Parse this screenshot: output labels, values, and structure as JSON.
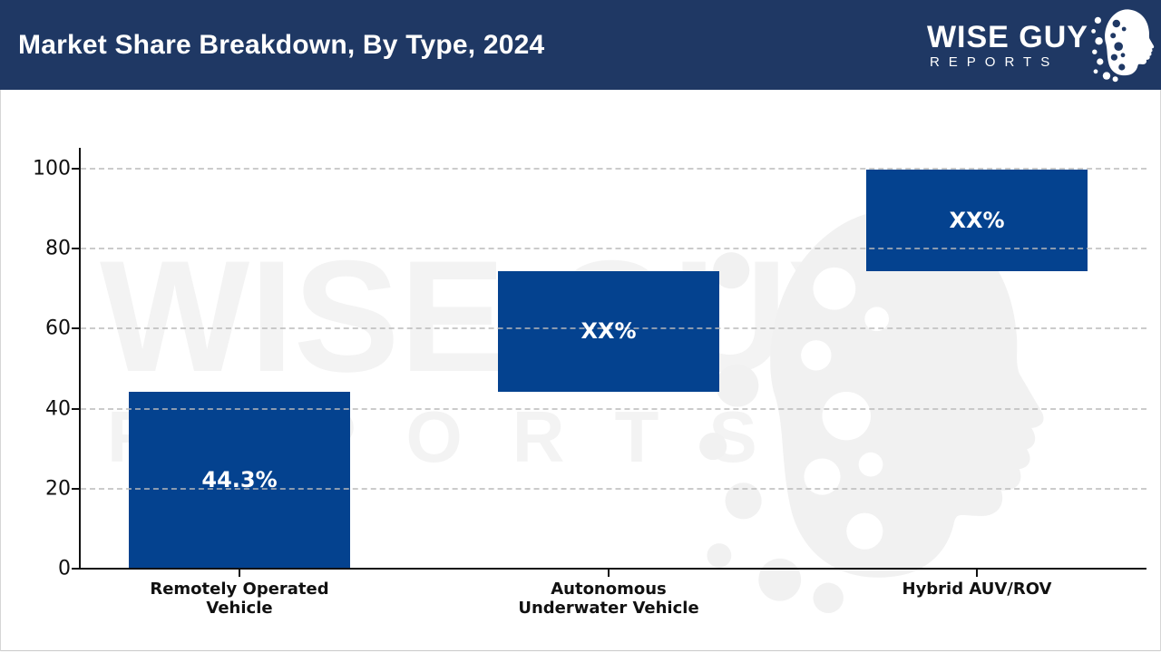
{
  "header": {
    "title": "Market Share Breakdown, By Type, 2024",
    "logo": {
      "name": "WISE GUY",
      "sub": "REPORTS"
    }
  },
  "watermark": {
    "line1": "WISE GUY",
    "line2": "REPORTS"
  },
  "chart_data": {
    "type": "bar",
    "variant": "floating-segment-waterfall",
    "title": "Market Share Breakdown, By Type, 2024",
    "categories": [
      {
        "lines": [
          "Remotely Operated",
          "Vehicle"
        ]
      },
      {
        "lines": [
          "Autonomous",
          "Underwater Vehicle"
        ]
      },
      {
        "lines": [
          "Hybrid AUV/ROV"
        ]
      }
    ],
    "bars": [
      {
        "category": "Remotely Operated Vehicle",
        "label": "44.3%",
        "start": 0,
        "end": 44.3
      },
      {
        "category": "Autonomous Underwater Vehicle",
        "label": "XX%",
        "start": 44.3,
        "end": 74.4
      },
      {
        "category": "Hybrid AUV/ROV",
        "label": "XX%",
        "start": 74.4,
        "end": 99.8
      }
    ],
    "yticks": [
      0,
      20,
      40,
      60,
      80,
      100
    ],
    "ylim": [
      0,
      105
    ],
    "grid": {
      "axis": "y",
      "style": "dashed",
      "on": true
    },
    "legend": "none",
    "bar_color": "#04428F",
    "bar_label_color": "#FFFFFF",
    "axis_color": "#000000",
    "grid_color": "#C9C9C9"
  },
  "colors": {
    "header_bg": "#1F3864",
    "bar": "#04428F",
    "watermark": "#F3F3F3",
    "page_bg": "#FFFFFF"
  }
}
